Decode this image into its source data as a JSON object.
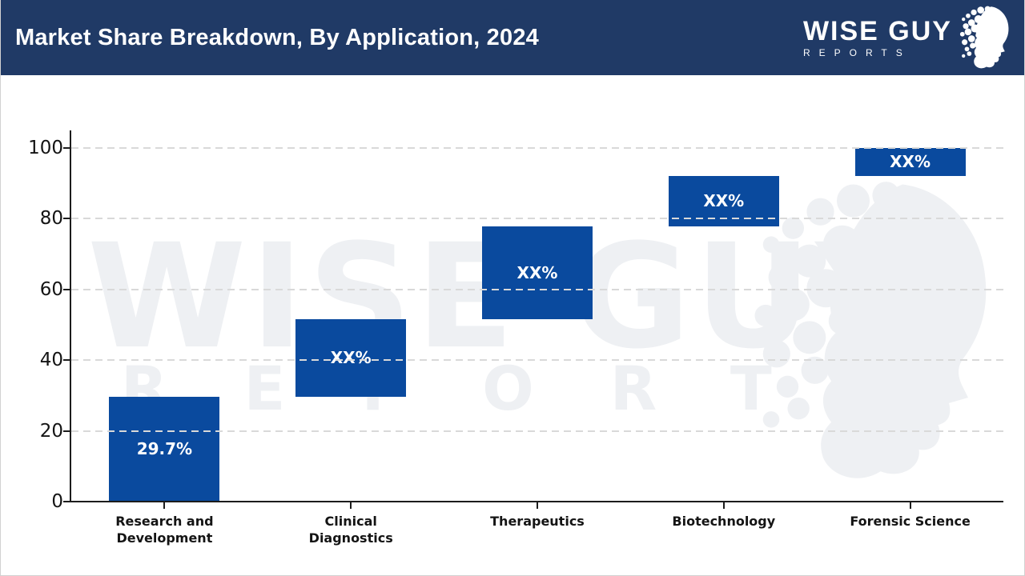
{
  "header": {
    "title": "Market Share Breakdown, By Application, 2024",
    "logo": {
      "line1": "WISE GUY",
      "line2": "REPORTS"
    }
  },
  "watermark": {
    "line1": "WISE GUY",
    "line2": "REPORTS"
  },
  "colors": {
    "header_bg": "#203a66",
    "bar": "#0a4a9e",
    "bar_label": "#ffffff",
    "grid": "#d9d9d9",
    "axis": "#1c1c1c",
    "tick_text": "#141414",
    "watermark": "#eef0f3",
    "page_border": "#d2d2d2"
  },
  "chart_data": {
    "type": "bar",
    "subtype": "waterfall",
    "title": "Market Share Breakdown, By Application, 2024",
    "categories": [
      [
        "Research and",
        "Development"
      ],
      [
        "Clinical",
        "Diagnostics"
      ],
      [
        "Therapeutics"
      ],
      [
        "Biotechnology"
      ],
      [
        "Forensic Science"
      ]
    ],
    "segments": [
      {
        "category": "Research and Development",
        "from": 0,
        "to": 29.7,
        "label": "29.7%"
      },
      {
        "category": "Clinical Diagnostics",
        "from": 29.7,
        "to": 51.7,
        "label": "XX%"
      },
      {
        "category": "Therapeutics",
        "from": 51.7,
        "to": 77.9,
        "label": "XX%"
      },
      {
        "category": "Biotechnology",
        "from": 77.9,
        "to": 92.2,
        "label": "XX%"
      },
      {
        "category": "Forensic Science",
        "from": 92.2,
        "to": 100,
        "label": "XX%"
      }
    ],
    "yticks": [
      0,
      20,
      40,
      60,
      80,
      100
    ],
    "ylim": [
      0,
      105
    ],
    "xlabel": "",
    "ylabel": "",
    "grid": "horizontal-dashed",
    "legend_position": "none"
  }
}
